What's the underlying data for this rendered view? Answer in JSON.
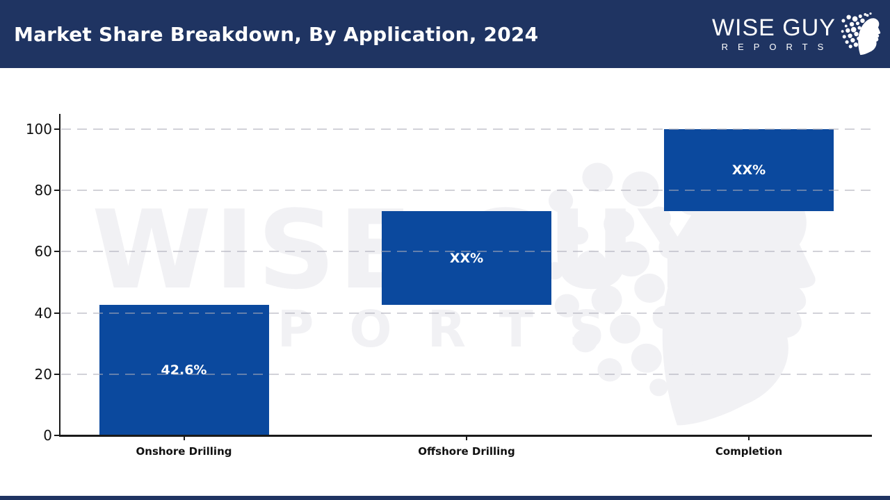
{
  "header": {
    "title": "Market Share Breakdown, By Application, 2024",
    "logo": {
      "primary": "WISE GUY",
      "secondary": "REPORTS"
    }
  },
  "watermark": {
    "primary": "WISE GUY",
    "secondary": "REPORTS"
  },
  "colors": {
    "header_bg": "#1f3462",
    "footer_bar": "#1f3462",
    "bar": "#0b499e",
    "watermark": "#f1f1f4",
    "axis": "#1a1a1a",
    "grid": "rgba(172,172,184,0.55)",
    "bar_label": "#ffffff"
  },
  "chart_data": {
    "type": "bar",
    "subtype": "floating-stacked-breakdown",
    "title": "Market Share Breakdown, By Application, 2024",
    "categories": [
      "Onshore Drilling",
      "Offshore Drilling",
      "Completion"
    ],
    "series": [
      {
        "name": "Market Share (%)",
        "ranges": [
          [
            0,
            42.6
          ],
          [
            42.6,
            73.2
          ],
          [
            73.2,
            100
          ]
        ],
        "bar_labels": [
          "42.6%",
          "XX%",
          "XX%"
        ]
      }
    ],
    "ylim": [
      0,
      100
    ],
    "yticks": [
      0,
      20,
      40,
      60,
      80,
      100
    ],
    "xlabel": "",
    "ylabel": "",
    "grid": "horizontal-dashed",
    "legend": "none"
  }
}
